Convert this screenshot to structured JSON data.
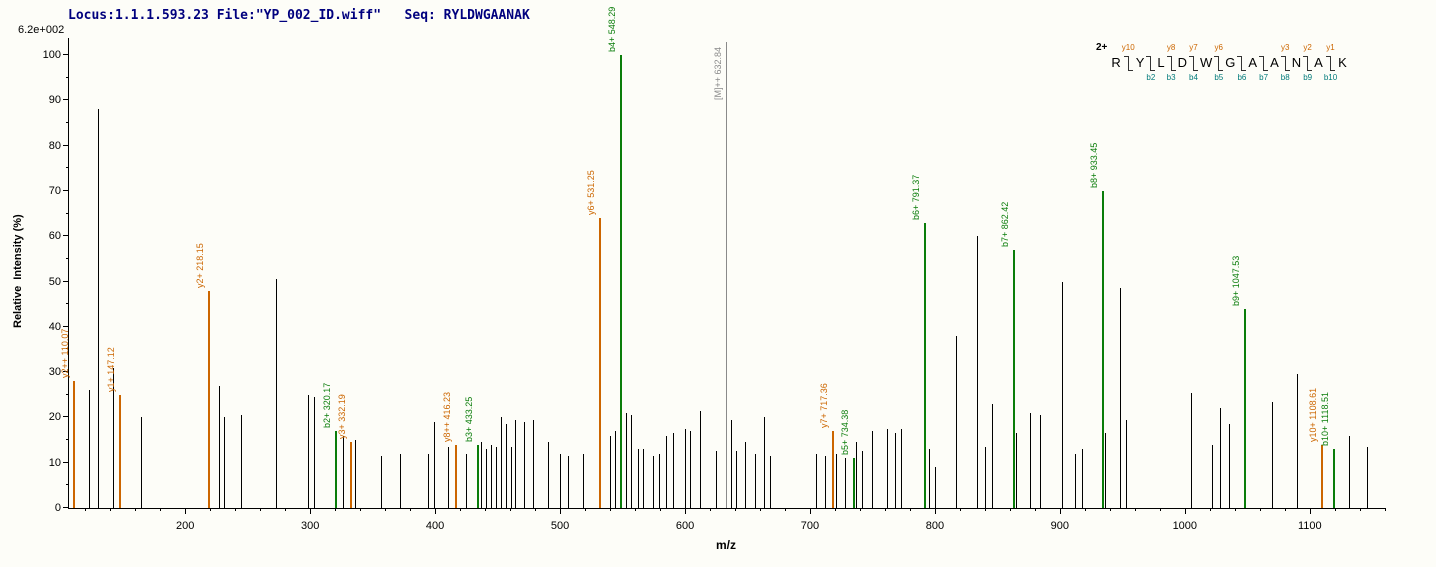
{
  "header": {
    "title": "Locus:1.1.1.593.23 File:\"YP_002_ID.wiff\"   Seq: RYLDWGAANAK",
    "max_intensity": "6.2e+002"
  },
  "colors": {
    "y_ion": "#cc6600",
    "b_ion": "#0a7d0a",
    "precursor": "#8a8a8a",
    "peak": "#000000",
    "header_text": "#00007e",
    "seq_b_label": "#007a7a"
  },
  "sequence_panel": {
    "charge_label": "2+",
    "residues": [
      "R",
      "Y",
      "L",
      "D",
      "W",
      "G",
      "A",
      "A",
      "N",
      "A",
      "K"
    ],
    "gaps": [
      {
        "y_ion": "y10",
        "b_ion": ""
      },
      {
        "y_ion": "",
        "b_ion": "b2"
      },
      {
        "y_ion": "y8",
        "b_ion": "b3"
      },
      {
        "y_ion": "y7",
        "b_ion": "b4"
      },
      {
        "y_ion": "y6",
        "b_ion": "b5"
      },
      {
        "y_ion": "",
        "b_ion": "b6"
      },
      {
        "y_ion": "",
        "b_ion": "b7"
      },
      {
        "y_ion": "y3",
        "b_ion": "b8"
      },
      {
        "y_ion": "y2",
        "b_ion": "b9"
      },
      {
        "y_ion": "y1",
        "b_ion": "b10"
      }
    ]
  },
  "chart_data": {
    "type": "bar",
    "subtype": "ms2-peptide-fragment-spectrum",
    "title": "",
    "xlabel": "m/z",
    "ylabel": "Relative  Intensity (%)",
    "xlim": [
      107,
      1161
    ],
    "ylim": [
      0,
      100
    ],
    "x_ticks": [
      200,
      300,
      400,
      500,
      600,
      700,
      800,
      900,
      1000,
      1100
    ],
    "y_ticks": [
      0,
      10,
      20,
      30,
      40,
      50,
      60,
      70,
      80,
      90,
      100
    ],
    "legend": "off",
    "grid": "off",
    "peaks": [
      {
        "mz": 110.07,
        "intensity": 28,
        "label": "y2++ 110.07",
        "type": "y"
      },
      {
        "mz": 123,
        "intensity": 26,
        "type": "peak"
      },
      {
        "mz": 130,
        "intensity": 88,
        "type": "peak"
      },
      {
        "mz": 142,
        "intensity": 31,
        "type": "peak"
      },
      {
        "mz": 147.12,
        "intensity": 25,
        "label": "y1+ 147.12",
        "type": "y"
      },
      {
        "mz": 165,
        "intensity": 20,
        "type": "peak"
      },
      {
        "mz": 218.15,
        "intensity": 48,
        "label": "y2+ 218.15",
        "type": "y"
      },
      {
        "mz": 227,
        "intensity": 27,
        "type": "peak"
      },
      {
        "mz": 231,
        "intensity": 20,
        "type": "peak"
      },
      {
        "mz": 245,
        "intensity": 20.5,
        "type": "peak"
      },
      {
        "mz": 273,
        "intensity": 50.5,
        "type": "peak"
      },
      {
        "mz": 298,
        "intensity": 25,
        "type": "peak"
      },
      {
        "mz": 303,
        "intensity": 24.5,
        "type": "peak"
      },
      {
        "mz": 320.17,
        "intensity": 17,
        "label": "b2+ 320.17",
        "type": "b"
      },
      {
        "mz": 326,
        "intensity": 16,
        "type": "peak"
      },
      {
        "mz": 332.19,
        "intensity": 14.5,
        "label": "y3+ 332.19",
        "type": "y"
      },
      {
        "mz": 336,
        "intensity": 15,
        "type": "peak"
      },
      {
        "mz": 357,
        "intensity": 11.5,
        "type": "peak"
      },
      {
        "mz": 372,
        "intensity": 12,
        "type": "peak"
      },
      {
        "mz": 394,
        "intensity": 12,
        "type": "peak"
      },
      {
        "mz": 399,
        "intensity": 19,
        "type": "peak"
      },
      {
        "mz": 410,
        "intensity": 13.5,
        "type": "peak"
      },
      {
        "mz": 416.23,
        "intensity": 14,
        "label": "y8++ 416.23",
        "type": "y"
      },
      {
        "mz": 425,
        "intensity": 12,
        "type": "peak"
      },
      {
        "mz": 433.25,
        "intensity": 14,
        "label": "b3+ 433.25",
        "type": "b"
      },
      {
        "mz": 437,
        "intensity": 14.5,
        "type": "peak"
      },
      {
        "mz": 441,
        "intensity": 13,
        "type": "peak"
      },
      {
        "mz": 445,
        "intensity": 14,
        "type": "peak"
      },
      {
        "mz": 449,
        "intensity": 13.5,
        "type": "peak"
      },
      {
        "mz": 453,
        "intensity": 20,
        "type": "peak"
      },
      {
        "mz": 457,
        "intensity": 18.5,
        "type": "peak"
      },
      {
        "mz": 461,
        "intensity": 13.5,
        "type": "peak"
      },
      {
        "mz": 464,
        "intensity": 19.5,
        "type": "peak"
      },
      {
        "mz": 471,
        "intensity": 19,
        "type": "peak"
      },
      {
        "mz": 478,
        "intensity": 19.5,
        "type": "peak"
      },
      {
        "mz": 490,
        "intensity": 14.5,
        "type": "peak"
      },
      {
        "mz": 500,
        "intensity": 12,
        "type": "peak"
      },
      {
        "mz": 506,
        "intensity": 11.5,
        "type": "peak"
      },
      {
        "mz": 518,
        "intensity": 12,
        "type": "peak"
      },
      {
        "mz": 531.25,
        "intensity": 64,
        "label": "y6+ 531.25",
        "type": "y"
      },
      {
        "mz": 540,
        "intensity": 16,
        "type": "peak"
      },
      {
        "mz": 544,
        "intensity": 17,
        "type": "peak"
      },
      {
        "mz": 548.29,
        "intensity": 100,
        "label": "b4+ 548.29",
        "type": "b"
      },
      {
        "mz": 553,
        "intensity": 21,
        "type": "peak"
      },
      {
        "mz": 557,
        "intensity": 20.5,
        "type": "peak"
      },
      {
        "mz": 562,
        "intensity": 13,
        "type": "peak"
      },
      {
        "mz": 566,
        "intensity": 13,
        "type": "peak"
      },
      {
        "mz": 574,
        "intensity": 11.5,
        "type": "peak"
      },
      {
        "mz": 579,
        "intensity": 12,
        "type": "peak"
      },
      {
        "mz": 585,
        "intensity": 16,
        "type": "peak"
      },
      {
        "mz": 590,
        "intensity": 16.5,
        "type": "peak"
      },
      {
        "mz": 600,
        "intensity": 17.5,
        "type": "peak"
      },
      {
        "mz": 604,
        "intensity": 17,
        "type": "peak"
      },
      {
        "mz": 612,
        "intensity": 21.5,
        "type": "peak"
      },
      {
        "mz": 625,
        "intensity": 12.5,
        "type": "peak"
      },
      {
        "mz": 632.84,
        "intensity": 100,
        "label": "[M]++ 632.84",
        "type": "precursor"
      },
      {
        "mz": 637,
        "intensity": 19.5,
        "type": "peak"
      },
      {
        "mz": 641,
        "intensity": 12.5,
        "type": "peak"
      },
      {
        "mz": 648,
        "intensity": 14.5,
        "type": "peak"
      },
      {
        "mz": 656,
        "intensity": 12,
        "type": "peak"
      },
      {
        "mz": 663,
        "intensity": 20,
        "type": "peak"
      },
      {
        "mz": 668,
        "intensity": 11.5,
        "type": "peak"
      },
      {
        "mz": 705,
        "intensity": 12,
        "type": "peak"
      },
      {
        "mz": 712,
        "intensity": 11.5,
        "type": "peak"
      },
      {
        "mz": 717.36,
        "intensity": 17,
        "label": "y7+ 717.36",
        "type": "y"
      },
      {
        "mz": 721,
        "intensity": 12,
        "type": "peak"
      },
      {
        "mz": 728,
        "intensity": 11,
        "type": "peak"
      },
      {
        "mz": 734.38,
        "intensity": 11,
        "label": "b5+ 734.38",
        "type": "b"
      },
      {
        "mz": 737,
        "intensity": 14.5,
        "type": "peak"
      },
      {
        "mz": 742,
        "intensity": 12.5,
        "type": "peak"
      },
      {
        "mz": 750,
        "intensity": 17,
        "type": "peak"
      },
      {
        "mz": 762,
        "intensity": 17.5,
        "type": "peak"
      },
      {
        "mz": 768,
        "intensity": 16.5,
        "type": "peak"
      },
      {
        "mz": 773,
        "intensity": 17.5,
        "type": "peak"
      },
      {
        "mz": 791.37,
        "intensity": 63,
        "label": "b6+ 791.37",
        "type": "b"
      },
      {
        "mz": 795,
        "intensity": 13,
        "type": "peak"
      },
      {
        "mz": 800,
        "intensity": 9,
        "type": "peak"
      },
      {
        "mz": 817,
        "intensity": 38,
        "type": "peak"
      },
      {
        "mz": 834,
        "intensity": 60,
        "type": "peak"
      },
      {
        "mz": 840,
        "intensity": 13.5,
        "type": "peak"
      },
      {
        "mz": 846,
        "intensity": 23,
        "type": "peak"
      },
      {
        "mz": 862.42,
        "intensity": 57,
        "label": "b7+ 862.42",
        "type": "b"
      },
      {
        "mz": 865,
        "intensity": 16.5,
        "type": "peak"
      },
      {
        "mz": 876,
        "intensity": 21,
        "type": "peak"
      },
      {
        "mz": 884,
        "intensity": 20.5,
        "type": "peak"
      },
      {
        "mz": 902,
        "intensity": 50,
        "type": "peak"
      },
      {
        "mz": 912,
        "intensity": 12,
        "type": "peak"
      },
      {
        "mz": 918,
        "intensity": 13,
        "type": "peak"
      },
      {
        "mz": 933.45,
        "intensity": 70,
        "label": "b8+ 933.45",
        "type": "b"
      },
      {
        "mz": 936,
        "intensity": 16.5,
        "type": "peak"
      },
      {
        "mz": 948,
        "intensity": 48.5,
        "type": "peak"
      },
      {
        "mz": 953,
        "intensity": 19.5,
        "type": "peak"
      },
      {
        "mz": 1005,
        "intensity": 25.5,
        "type": "peak"
      },
      {
        "mz": 1022,
        "intensity": 14,
        "type": "peak"
      },
      {
        "mz": 1028,
        "intensity": 22,
        "type": "peak"
      },
      {
        "mz": 1035,
        "intensity": 18.5,
        "type": "peak"
      },
      {
        "mz": 1047.53,
        "intensity": 44,
        "label": "b9+ 1047.53",
        "type": "b"
      },
      {
        "mz": 1070,
        "intensity": 23.5,
        "type": "peak"
      },
      {
        "mz": 1090,
        "intensity": 29.5,
        "type": "peak"
      },
      {
        "mz": 1108.61,
        "intensity": 14,
        "label": "y10+ 1108.61",
        "type": "y"
      },
      {
        "mz": 1118.51,
        "intensity": 13,
        "label": "b10+ 1118.51",
        "type": "b"
      },
      {
        "mz": 1131,
        "intensity": 16,
        "type": "peak"
      },
      {
        "mz": 1146,
        "intensity": 13.5,
        "type": "peak"
      }
    ]
  }
}
